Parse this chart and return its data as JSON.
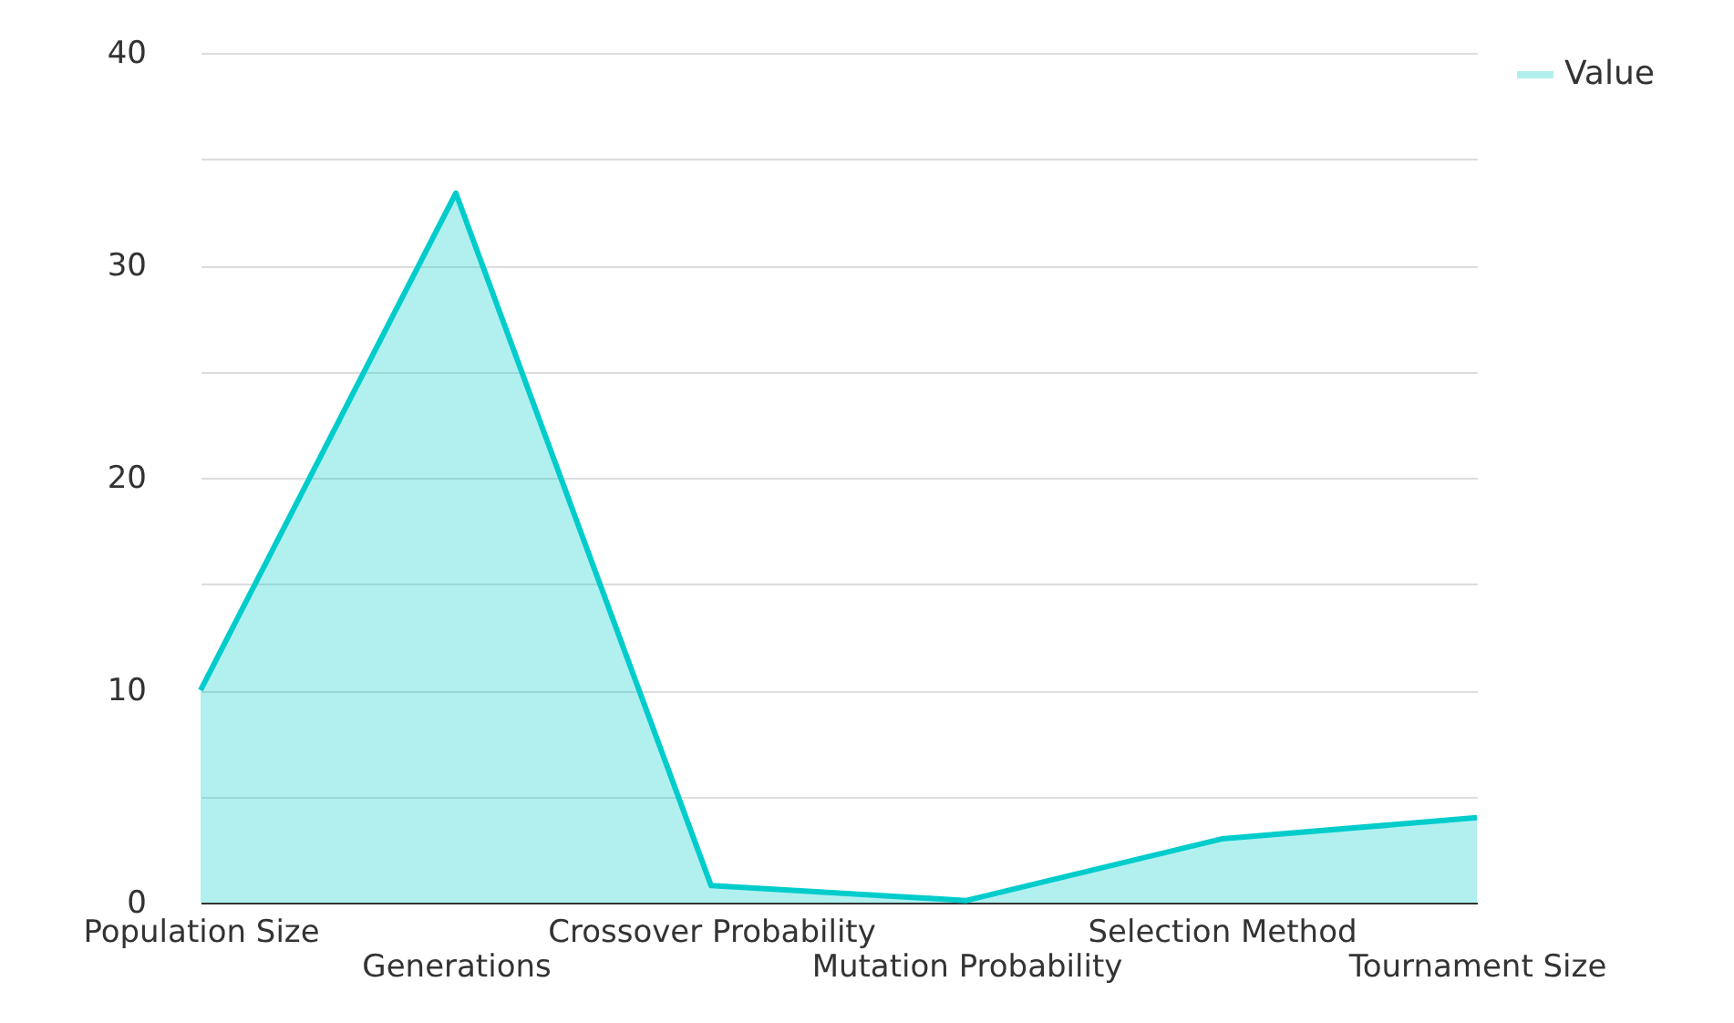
{
  "chart_data": {
    "type": "area",
    "categories": [
      "Population Size",
      "Generations",
      "Crossover Probability",
      "Mutation Probability",
      "Selection Method",
      "Tournament Size"
    ],
    "series": [
      {
        "name": "Value",
        "color": "#00cccc",
        "values": [
          10,
          33.4,
          0.8,
          0.1,
          3,
          4
        ]
      }
    ],
    "ylim": [
      0,
      40
    ],
    "yticks": [
      0,
      {
        "value": 5,
        "label": null
      },
      10,
      {
        "value": 15,
        "label": null
      },
      20,
      {
        "value": 25,
        "label": null
      },
      30,
      {
        "value": 35,
        "label": null
      },
      40
    ],
    "grid": "y",
    "legend": "top right"
  }
}
